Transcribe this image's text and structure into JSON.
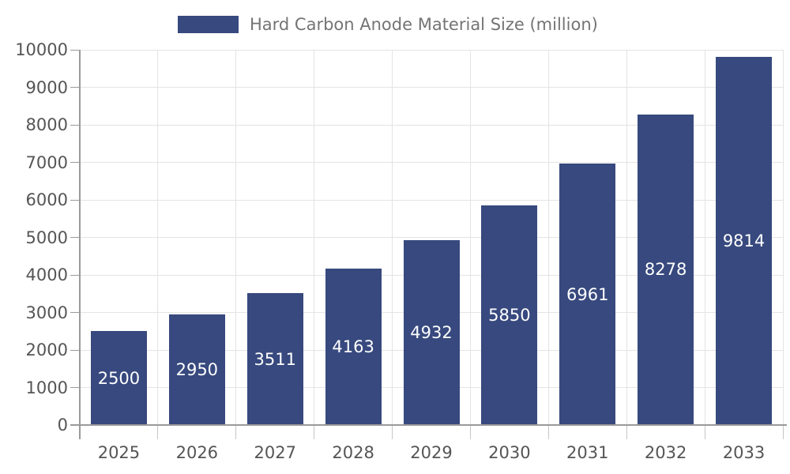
{
  "chart_data": {
    "type": "bar",
    "title": "",
    "legend_label": "Hard Carbon Anode Material Size (million)",
    "legend_position": "top-center",
    "categories": [
      "2025",
      "2026",
      "2027",
      "2028",
      "2029",
      "2030",
      "2031",
      "2032",
      "2033"
    ],
    "series": [
      {
        "name": "Hard Carbon Anode Material Size (million)",
        "values": [
          2500,
          2950,
          3511,
          4163,
          4932,
          5850,
          6961,
          8278,
          9814
        ]
      }
    ],
    "xlabel": "",
    "ylabel": "",
    "ylim": [
      0,
      10000
    ],
    "ytick_step": 1000,
    "ytick_labels": [
      "0",
      "1000",
      "2000",
      "3000",
      "4000",
      "5000",
      "6000",
      "7000",
      "8000",
      "9000",
      "10000"
    ],
    "grid": true,
    "value_labels_shown": true,
    "colors": {
      "bar": "#37497E",
      "value_label": "#ffffff",
      "gridline": "#e4e4e4",
      "axis_line": "#9a9a9a",
      "minor_tick": "#c6c6c6",
      "tick_label": "#555555",
      "legend_text": "#747474",
      "background": "#ffffff"
    }
  }
}
